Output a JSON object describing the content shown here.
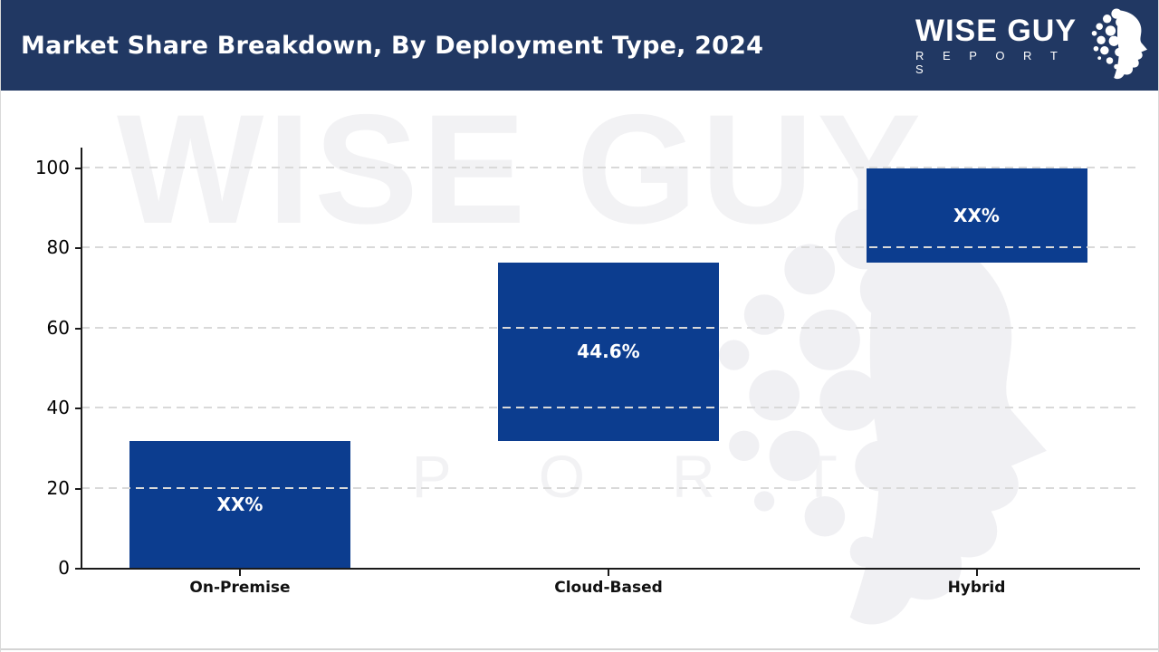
{
  "header": {
    "title": "Market Share Breakdown, By Deployment Type, 2024",
    "logo": {
      "name": "WISE GUY",
      "subtext": "R E P O R T S"
    }
  },
  "watermark": {
    "name": "WISE GUY",
    "subtext": "REPORTS"
  },
  "chart_data": {
    "type": "bar",
    "subtype": "floating-waterfall",
    "title": "Market Share Breakdown, By Deployment Type, 2024",
    "categories": [
      "On-Premise",
      "Cloud-Based",
      "Hybrid"
    ],
    "segments": [
      {
        "category": "On-Premise",
        "start": 0,
        "end": 31.7,
        "span": 31.7,
        "value_label": "XX%"
      },
      {
        "category": "Cloud-Based",
        "start": 31.7,
        "end": 76.3,
        "span": 44.6,
        "value_label": "44.6%"
      },
      {
        "category": "Hybrid",
        "start": 76.3,
        "end": 99.8,
        "span": 23.5,
        "value_label": "XX%"
      }
    ],
    "yticks": [
      0,
      20,
      40,
      60,
      80,
      100
    ],
    "ylim": [
      0,
      105
    ],
    "xlabel": "",
    "ylabel": "",
    "grid": "horizontal-dashed",
    "legend": "none",
    "bar_color": "#0c3d8f"
  },
  "colors": {
    "header_bg": "#213863",
    "title_text": "#ffffff",
    "bar": "#0c3d8f",
    "bar_label": "#ffffff",
    "gridline": "#d9d9d9",
    "axis": "#1a1a1a",
    "tick_label": "#000000",
    "watermark": "#f2f2f4"
  }
}
